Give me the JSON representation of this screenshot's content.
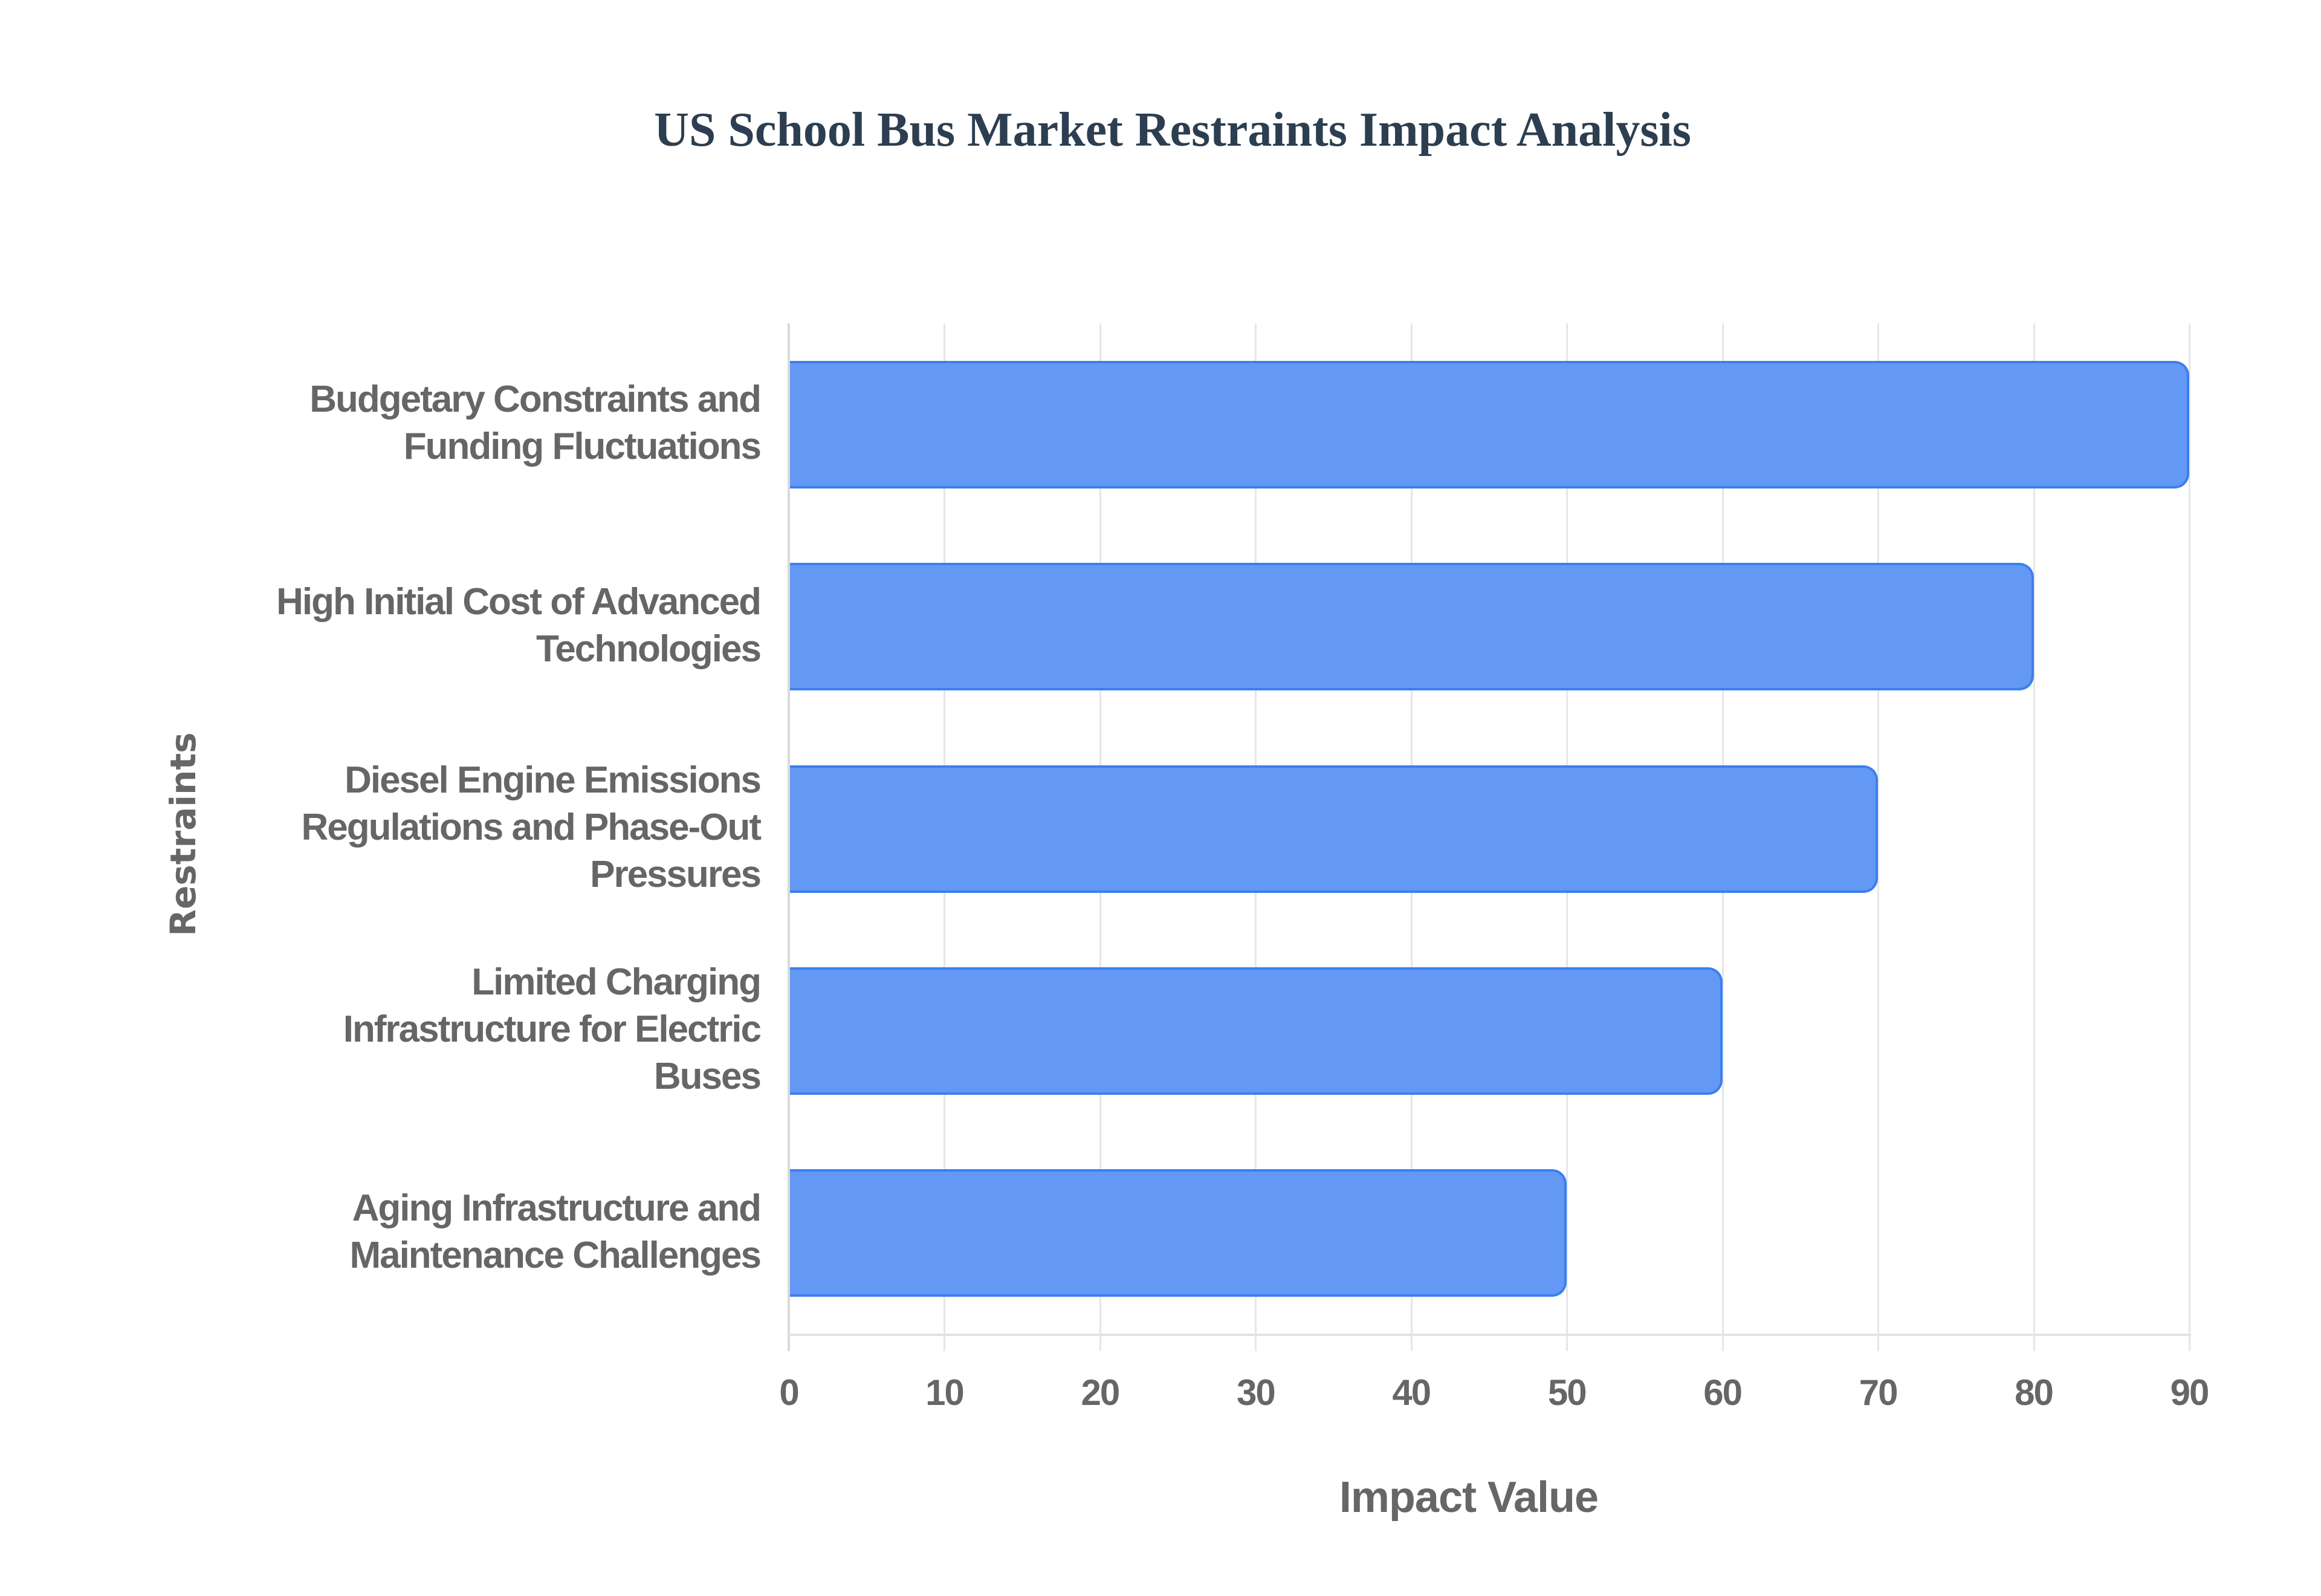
{
  "title": "US School Bus Market Restraints Impact Analysis",
  "colors": {
    "title": "#2c3e50",
    "bar_fill": "#6399f4",
    "bar_border": "#3b7ff0",
    "axis_text": "#666666",
    "grid": "#e6e6e6"
  },
  "axes": {
    "x_title": "Impact Value",
    "y_title": "Restraints",
    "x_ticks": [
      "0",
      "10",
      "20",
      "30",
      "40",
      "50",
      "60",
      "70",
      "80",
      "90"
    ]
  },
  "categories": [
    "Budgetary Constraints and\nFunding Fluctuations",
    "High Initial Cost of Advanced\nTechnologies",
    "Diesel Engine Emissions\nRegulations and Phase-Out\nPressures",
    "Limited Charging\nInfrastructure for Electric\nBuses",
    "Aging Infrastructure and\nMaintenance Challenges"
  ],
  "chart_data": {
    "type": "bar",
    "orientation": "horizontal",
    "title": "US School Bus Market Restraints Impact Analysis",
    "xlabel": "Impact Value",
    "ylabel": "Restraints",
    "categories": [
      "Budgetary Constraints and Funding Fluctuations",
      "High Initial Cost of Advanced Technologies",
      "Diesel Engine Emissions Regulations and Phase-Out Pressures",
      "Limited Charging Infrastructure for Electric Buses",
      "Aging Infrastructure and Maintenance Challenges"
    ],
    "values": [
      90,
      80,
      70,
      60,
      50
    ],
    "xlim": [
      0,
      90
    ],
    "x_ticks": [
      0,
      10,
      20,
      30,
      40,
      50,
      60,
      70,
      80,
      90
    ],
    "grid": {
      "vertical": true,
      "horizontal": false
    },
    "legend": null,
    "bar_color": "#6399f4"
  }
}
